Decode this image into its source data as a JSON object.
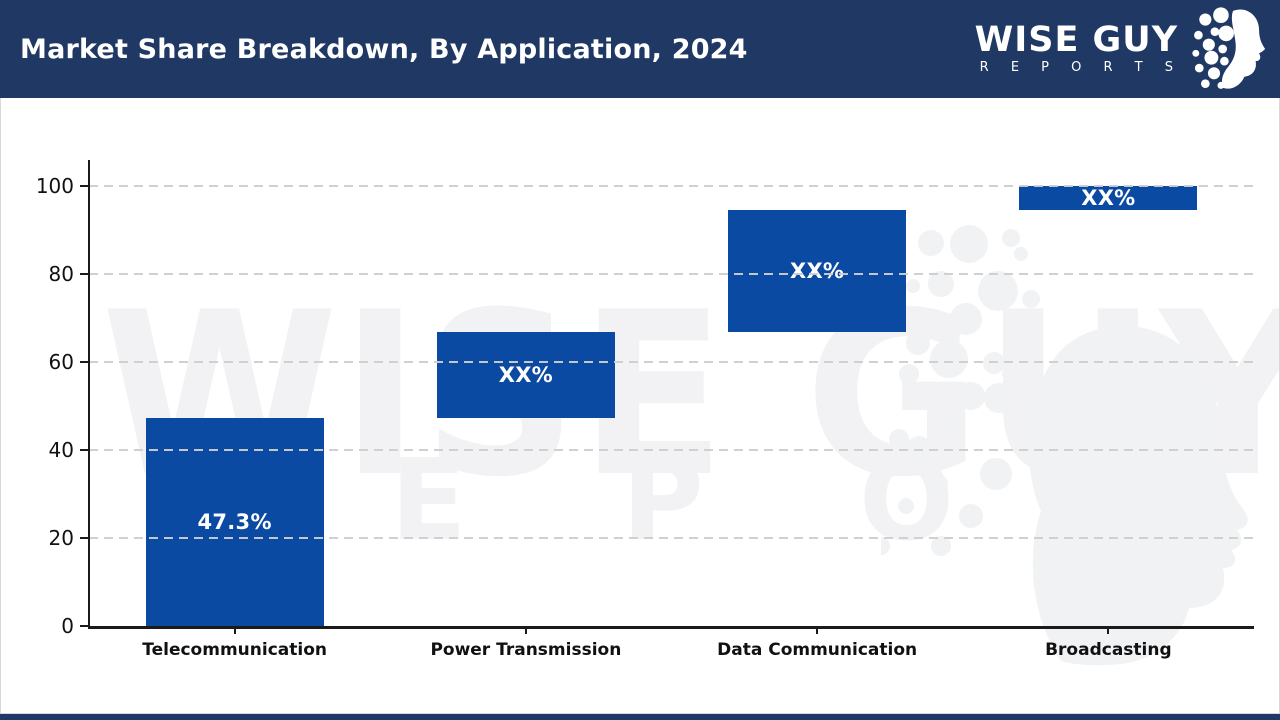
{
  "header": {
    "title": "Market Share Breakdown, By Application, 2024",
    "brand": {
      "name_line1": "WISE GUY",
      "name_line2": "R E P O R T S"
    }
  },
  "watermark": {
    "line1": "WISE GUY",
    "line2": "R E P O R T S"
  },
  "colors": {
    "header_bg": "#1f3864",
    "footer_bg": "#1f3864",
    "bar": "#0b4aa2",
    "grid": "#cecece",
    "axis": "#1a1a1a",
    "bar_label": "#ffffff",
    "watermark": "#f2f2f4"
  },
  "icons": {
    "brand_head": "dotted-head-profile-icon",
    "watermark_head": "dotted-head-profile-watermark"
  },
  "chart_data": {
    "type": "bar",
    "variant": "waterfall",
    "title": "Market Share Breakdown, By Application, 2024",
    "categories": [
      "Telecommunication",
      "Power Transmission",
      "Data Communication",
      "Broadcasting"
    ],
    "segments": [
      {
        "category": "Telecommunication",
        "start": 0,
        "end": 47.3,
        "label": "47.3%"
      },
      {
        "category": "Power Transmission",
        "start": 47.3,
        "end": 66.9,
        "label": "XX%"
      },
      {
        "category": "Data Communication",
        "start": 66.9,
        "end": 94.5,
        "label": "XX%"
      },
      {
        "category": "Broadcasting",
        "start": 94.5,
        "end": 100,
        "label": "XX%"
      }
    ],
    "xlabel": "",
    "ylabel": "",
    "ylim": [
      0,
      105
    ],
    "yticks": [
      0,
      20,
      40,
      60,
      80,
      100
    ],
    "grid": "horizontal-dashed",
    "legend": "none"
  }
}
